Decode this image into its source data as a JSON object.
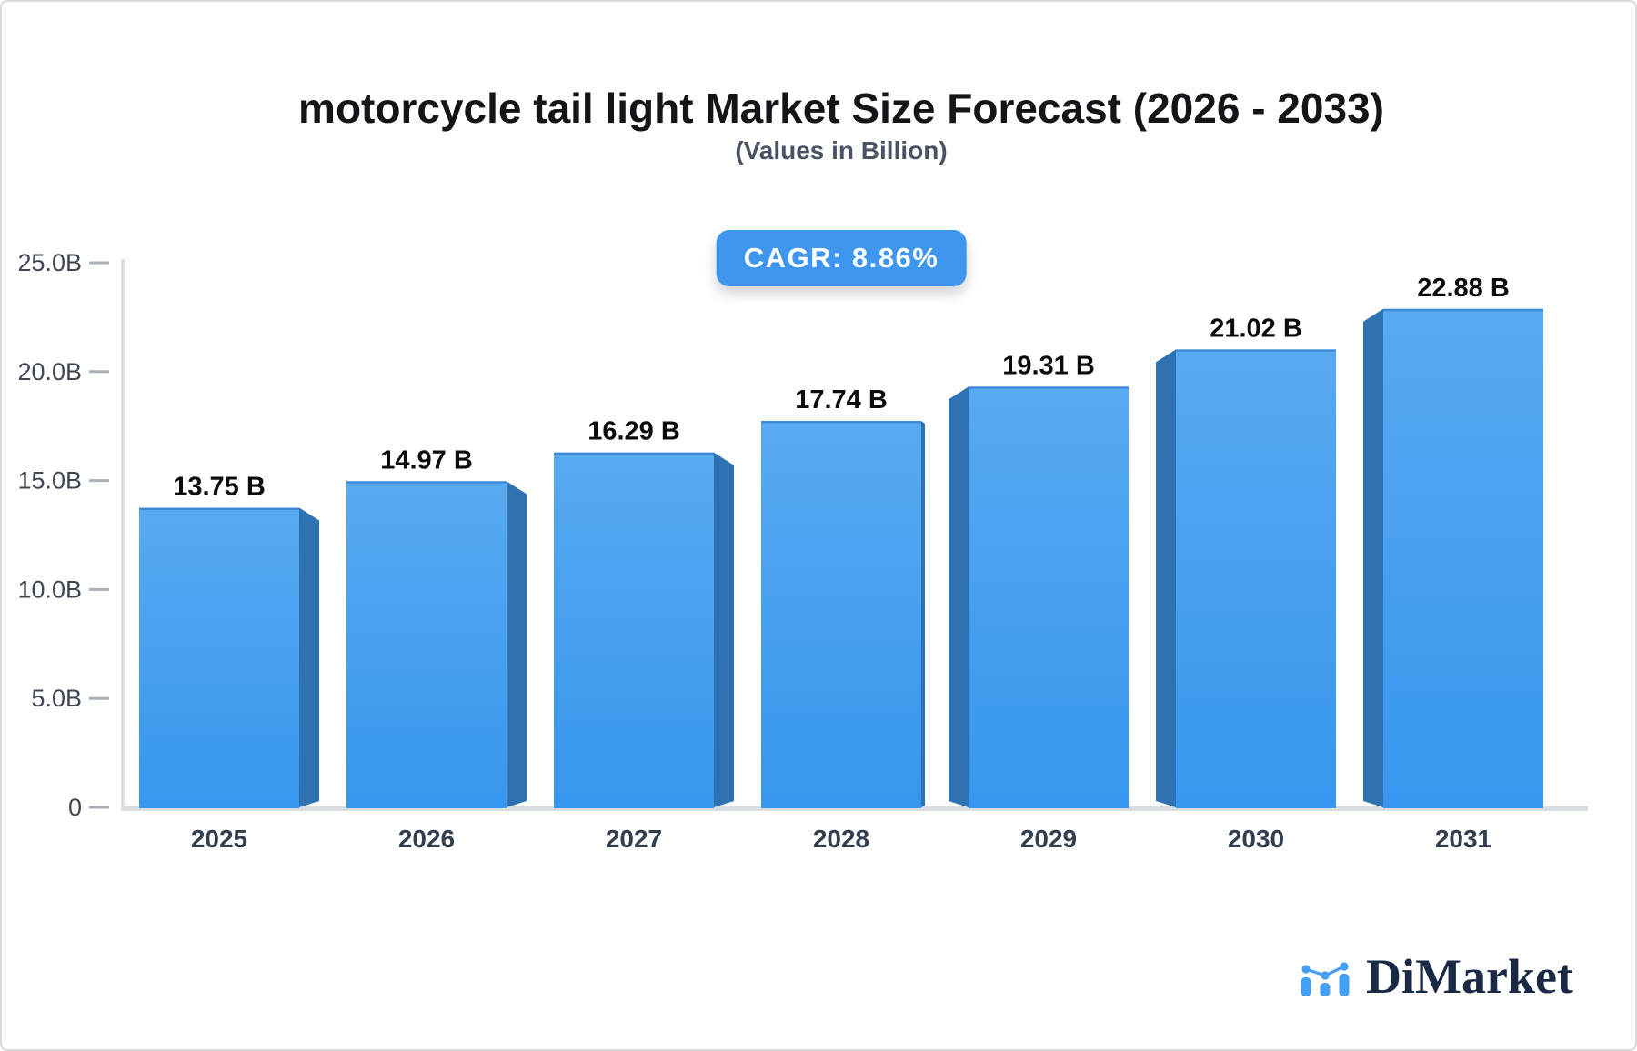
{
  "header": {
    "title": "motorcycle tail light Market Size Forecast (2026 - 2033)",
    "subtitle": "(Values in Billion)"
  },
  "badge": {
    "label": "CAGR: 8.86%",
    "cagr_value": "8.86%"
  },
  "chart_data": {
    "type": "bar",
    "title": "motorcycle tail light Market Size Forecast (2026 - 2033)",
    "subtitle": "(Values in Billion)",
    "categories": [
      "2025",
      "2026",
      "2027",
      "2028",
      "2029",
      "2030",
      "2031"
    ],
    "values": [
      13.75,
      14.97,
      16.29,
      17.74,
      19.31,
      21.02,
      22.88
    ],
    "value_labels": [
      "13.75 B",
      "14.97 B",
      "16.29 B",
      "17.74 B",
      "19.31 B",
      "21.02 B",
      "22.88 B"
    ],
    "unit": "Billion",
    "xlabel": "",
    "ylabel": "",
    "ylim": [
      0,
      25
    ],
    "yticks": [
      {
        "v": 0,
        "label": "0"
      },
      {
        "v": 5,
        "label": "5.0B"
      },
      {
        "v": 10,
        "label": "10.0B"
      },
      {
        "v": 15,
        "label": "15.0B"
      },
      {
        "v": 20,
        "label": "20.0B"
      },
      {
        "v": 25,
        "label": "25.0B"
      }
    ],
    "grid": false,
    "legend": false,
    "bar_style": "3d-extruded, perspective toward center bar"
  },
  "logo": {
    "text": "DiMarket",
    "icon": "mini-bar-chart-icon"
  },
  "colors": {
    "accent_blue": "#3f96ef",
    "bar_front_top": "#58aaf1",
    "bar_front_bottom": "#3796ee",
    "bar_top_edge": "#3f8ad8",
    "bar_side": "#2e72b1",
    "axis_line": "#d9dce1",
    "tick_dash": "#a9b0ba",
    "title_text": "#141519",
    "subtitle_text": "#4a5365",
    "value_label_text": "#0b0c0e",
    "axis_label_text": "#3e4654",
    "year_label_text": "#333e4e",
    "badge_text": "#ffffff",
    "logo_text": "#1b2a44",
    "logo_icon": "#45a0f4"
  }
}
